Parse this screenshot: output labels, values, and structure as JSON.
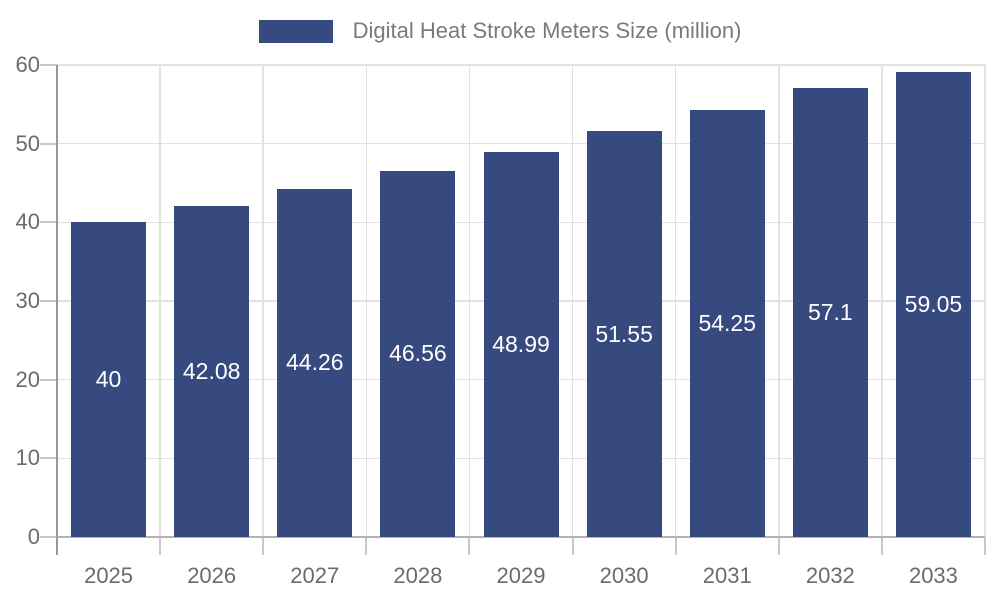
{
  "legend": {
    "label": "Digital Heat Stroke Meters Size (million)"
  },
  "chart_data": {
    "type": "bar",
    "title": "Digital Heat Stroke Meters Size (million)",
    "categories": [
      "2025",
      "2026",
      "2027",
      "2028",
      "2029",
      "2030",
      "2031",
      "2032",
      "2033"
    ],
    "values": [
      40,
      42.08,
      44.26,
      46.56,
      48.99,
      51.55,
      54.25,
      57.1,
      59.05
    ],
    "value_labels": [
      "40",
      "42.08",
      "44.26",
      "46.56",
      "48.99",
      "51.55",
      "54.25",
      "57.1",
      "59.05"
    ],
    "xlabel": "",
    "ylabel": "",
    "ylim": [
      0,
      60
    ],
    "ytick_interval": 10,
    "ytick_labels": [
      "0",
      "10",
      "20",
      "30",
      "40",
      "50",
      "60"
    ],
    "grid": true,
    "legend_position": "top-center",
    "colors": {
      "bar": "#364A80",
      "value_label": "#ffffff",
      "legend_text": "#7a7a7a",
      "axis_text": "#6b6b6b",
      "grid_line": "#e2e2e2",
      "tick_line": "#c9c9c9",
      "y_axis_line": "#989898",
      "x_axis_line": "#b3b3b3",
      "background": "#ffffff"
    }
  }
}
